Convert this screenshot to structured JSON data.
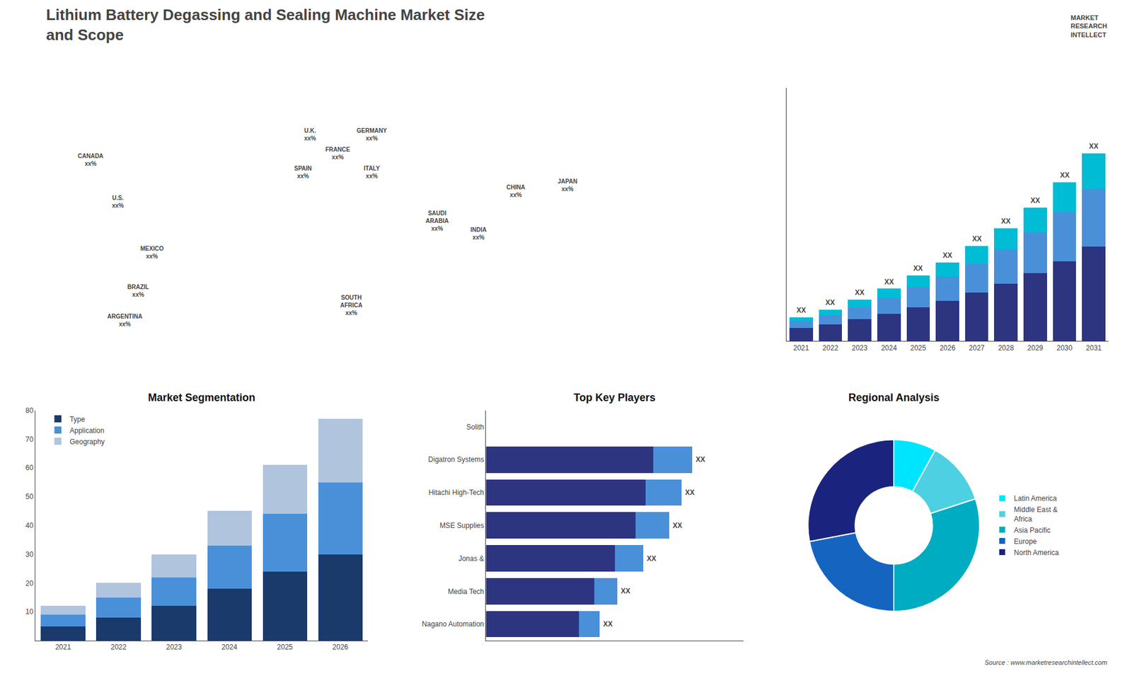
{
  "title": "Lithium Battery Degassing and Sealing Machine Market Size\nand Scope",
  "annotations": [
    "MARKET\nRESEARCH\nINTELLECT",
    "Source : www.marketresearchintellect.com"
  ],
  "chart_data": [
    {
      "type": "map",
      "annotations": [
        "CANADA\nxx%",
        "U.S.\nxx%",
        "MEXICO\nxx%",
        "BRAZIL\nxx%",
        "ARGENTINA\nxx%",
        "U.K.\nxx%",
        "FRANCE\nxx%",
        "SPAIN\nxx%",
        "GERMANY\nxx%",
        "ITALY\nxx%",
        "SAUDI\nARABIA\nxx%",
        "SOUTH\nAFRICA\nxx%",
        "CHINA\nxx%",
        "INDIA\nxx%",
        "JAPAN\nxx%"
      ]
    },
    {
      "type": "bar",
      "stacked": true,
      "categories": [
        "2021",
        "2022",
        "2023",
        "2024",
        "2025",
        "2026",
        "2027",
        "2028",
        "2029",
        "2030",
        "2031"
      ],
      "series": [
        {
          "color": "#2d3580",
          "values": [
            1,
            1.3,
            1.7,
            2.1,
            2.6,
            3.1,
            3.7,
            4.4,
            5.2,
            6.1,
            7.2
          ]
        },
        {
          "color": "#4a90d9",
          "values": [
            0.5,
            0.7,
            0.9,
            1.2,
            1.5,
            1.8,
            2.2,
            2.6,
            3.1,
            3.7,
            4.4
          ]
        },
        {
          "color": "#00bcd4",
          "values": [
            0.3,
            0.4,
            0.55,
            0.7,
            0.9,
            1.1,
            1.35,
            1.6,
            1.9,
            2.3,
            2.7
          ]
        }
      ],
      "ylim": [
        0,
        19.305
      ],
      "yticks": [],
      "tick_labels": "x",
      "grid": false,
      "annotations": [
        "XX",
        "XX",
        "XX",
        "XX",
        "XX",
        "XX",
        "XX",
        "XX",
        "XX",
        "XX",
        "XX"
      ]
    },
    {
      "type": "bar",
      "title": "Market Segmentation",
      "stacked": true,
      "categories": [
        "2021",
        "2022",
        "2023",
        "2024",
        "2025",
        "2026"
      ],
      "series": [
        {
          "name": "Type",
          "color": "#1a3a6b",
          "values": [
            5,
            8,
            12,
            18,
            24,
            30
          ]
        },
        {
          "name": "Application",
          "color": "#4a90d9",
          "values": [
            4,
            7,
            10,
            15,
            20,
            25
          ]
        },
        {
          "name": "Geography",
          "color": "#b0c4de",
          "values": [
            3,
            5,
            8,
            12,
            17,
            22
          ]
        }
      ],
      "ylim": [
        0,
        80
      ],
      "yticks": [
        10,
        20,
        30,
        40,
        50,
        60,
        70,
        80
      ],
      "legend": "upper left",
      "grid": false
    },
    {
      "type": "bar",
      "title": "Top Key Players",
      "orientation": "horizontal",
      "stacked": true,
      "categories": [
        "Solith",
        "Digatron Systems",
        "Hitachi High-Tech",
        "MSE Supplies",
        "Jonas &",
        "Media Tech",
        "Nagano Automation"
      ],
      "series": [
        {
          "color": "#2d3580",
          "values": [
            0,
            6.5,
            6.2,
            5.8,
            5.0,
            4.2,
            3.6
          ]
        },
        {
          "color": "#4a90d9",
          "values": [
            0,
            1.5,
            1.4,
            1.3,
            1.1,
            0.9,
            0.8
          ]
        }
      ],
      "xlim": [
        0,
        10
      ],
      "xticks": [],
      "tick_labels": "y",
      "grid": false,
      "annotations": [
        null,
        "XX",
        "XX",
        "XX",
        "XX",
        "XX",
        "XX"
      ]
    },
    {
      "type": "pie",
      "title": "Regional Analysis",
      "categories": [
        "Latin America",
        "Middle East &\nAfrica",
        "Asia Pacific",
        "Europe",
        "North America"
      ],
      "values": [
        8,
        12,
        30,
        22,
        28
      ],
      "colors": [
        "#00e5ff",
        "#4dd0e1",
        "#00acc1",
        "#1565c0",
        "#1a237e"
      ],
      "legend": "right"
    }
  ]
}
